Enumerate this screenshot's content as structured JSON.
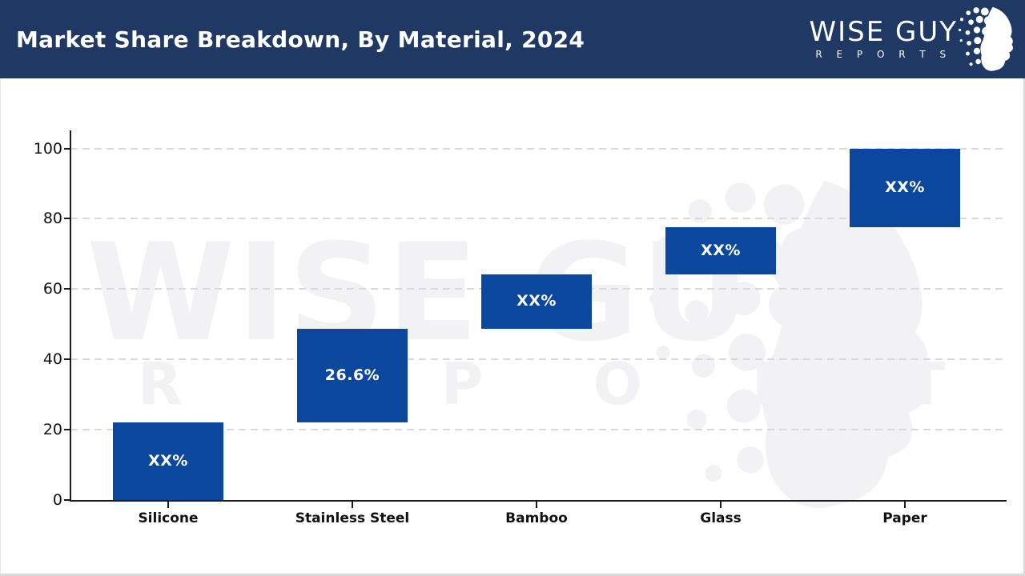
{
  "header": {
    "title": "Market Share Breakdown, By Material, 2024",
    "logo": {
      "line1": "WISE GUY",
      "line2": "R E P O R T S"
    }
  },
  "watermark": {
    "line1": "WISE GUY",
    "line2": "R E P O R T S"
  },
  "colors": {
    "header_bg": "#1f3864",
    "bar": "#0b479d",
    "grid": "#d9d9d9",
    "axis": "#1a1a1a",
    "bar_label_text": "#ffffff",
    "watermark_gray": "#f2f2f4"
  },
  "chart_data": {
    "type": "bar",
    "subtype": "waterfall",
    "title": "Market Share Breakdown, By Material, 2024",
    "categories": [
      "Silicone",
      "Stainless Steel",
      "Bamboo",
      "Glass",
      "Paper"
    ],
    "series": [
      {
        "name": "Market Share %",
        "starts": [
          0,
          22,
          48.6,
          64.1,
          77.6
        ],
        "ends": [
          22,
          48.6,
          64.1,
          77.6,
          100
        ],
        "values": [
          22,
          26.6,
          15.5,
          13.5,
          22.4
        ]
      }
    ],
    "bar_labels": [
      "XX%",
      "26.6%",
      "XX%",
      "XX%",
      "XX%"
    ],
    "xlabel": "",
    "ylabel": "",
    "ylim": [
      0,
      105
    ],
    "yticks": [
      0,
      20,
      40,
      60,
      80,
      100
    ],
    "grid": "horizontal-dashed",
    "legend": "none"
  }
}
